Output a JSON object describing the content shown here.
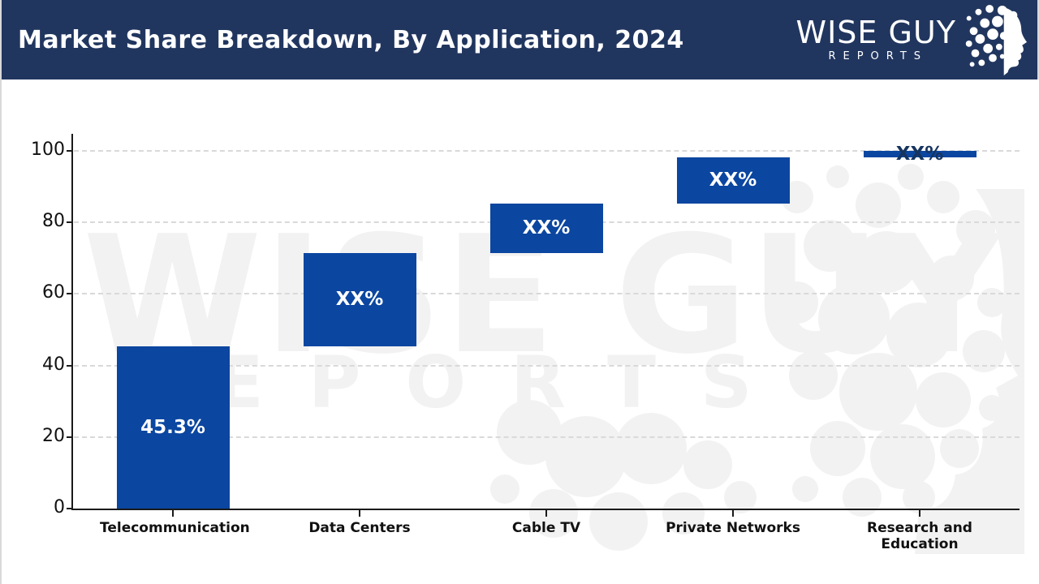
{
  "header": {
    "title": "Market Share Breakdown, By Application, 2024",
    "logo": {
      "wordmark": "WISE GUY",
      "subtext": "REPORTS"
    }
  },
  "watermark": {
    "wordmark": "WISE GUY",
    "subtext": "REPORTS"
  },
  "chart_data": {
    "type": "bar",
    "subtype": "waterfall",
    "title": "Market Share Breakdown, By Application, 2024",
    "xlabel": "",
    "ylabel": "",
    "ylim": [
      0,
      100
    ],
    "yticks": [
      0,
      20,
      40,
      60,
      80,
      100
    ],
    "grid": "horizontal-dashed",
    "legend": "none",
    "categories": [
      "Telecommunication",
      "Data Centers",
      "Cable TV",
      "Private Networks",
      "Research and Education"
    ],
    "bars": [
      {
        "category": "Telecommunication",
        "start": 0,
        "end": 45.3,
        "value_label": "45.3%",
        "label_color": "#ffffff"
      },
      {
        "category": "Data Centers",
        "start": 45.3,
        "end": 71.5,
        "value_label": "XX%",
        "label_color": "#ffffff"
      },
      {
        "category": "Cable TV",
        "start": 71.5,
        "end": 85.3,
        "value_label": "XX%",
        "label_color": "#ffffff"
      },
      {
        "category": "Private Networks",
        "start": 85.3,
        "end": 98.2,
        "value_label": "XX%",
        "label_color": "#ffffff"
      },
      {
        "category": "Research and Education",
        "start": 98.2,
        "end": 100,
        "value_label": "XX%",
        "label_color": "#16345e"
      }
    ]
  },
  "colors": {
    "header_bg": "#21365f",
    "bar": "#0b46a0",
    "axis": "#1a1a1a",
    "grid": "#d9d9d9",
    "watermark": "#f2f2f2",
    "page_border": "#d9d9d9"
  }
}
